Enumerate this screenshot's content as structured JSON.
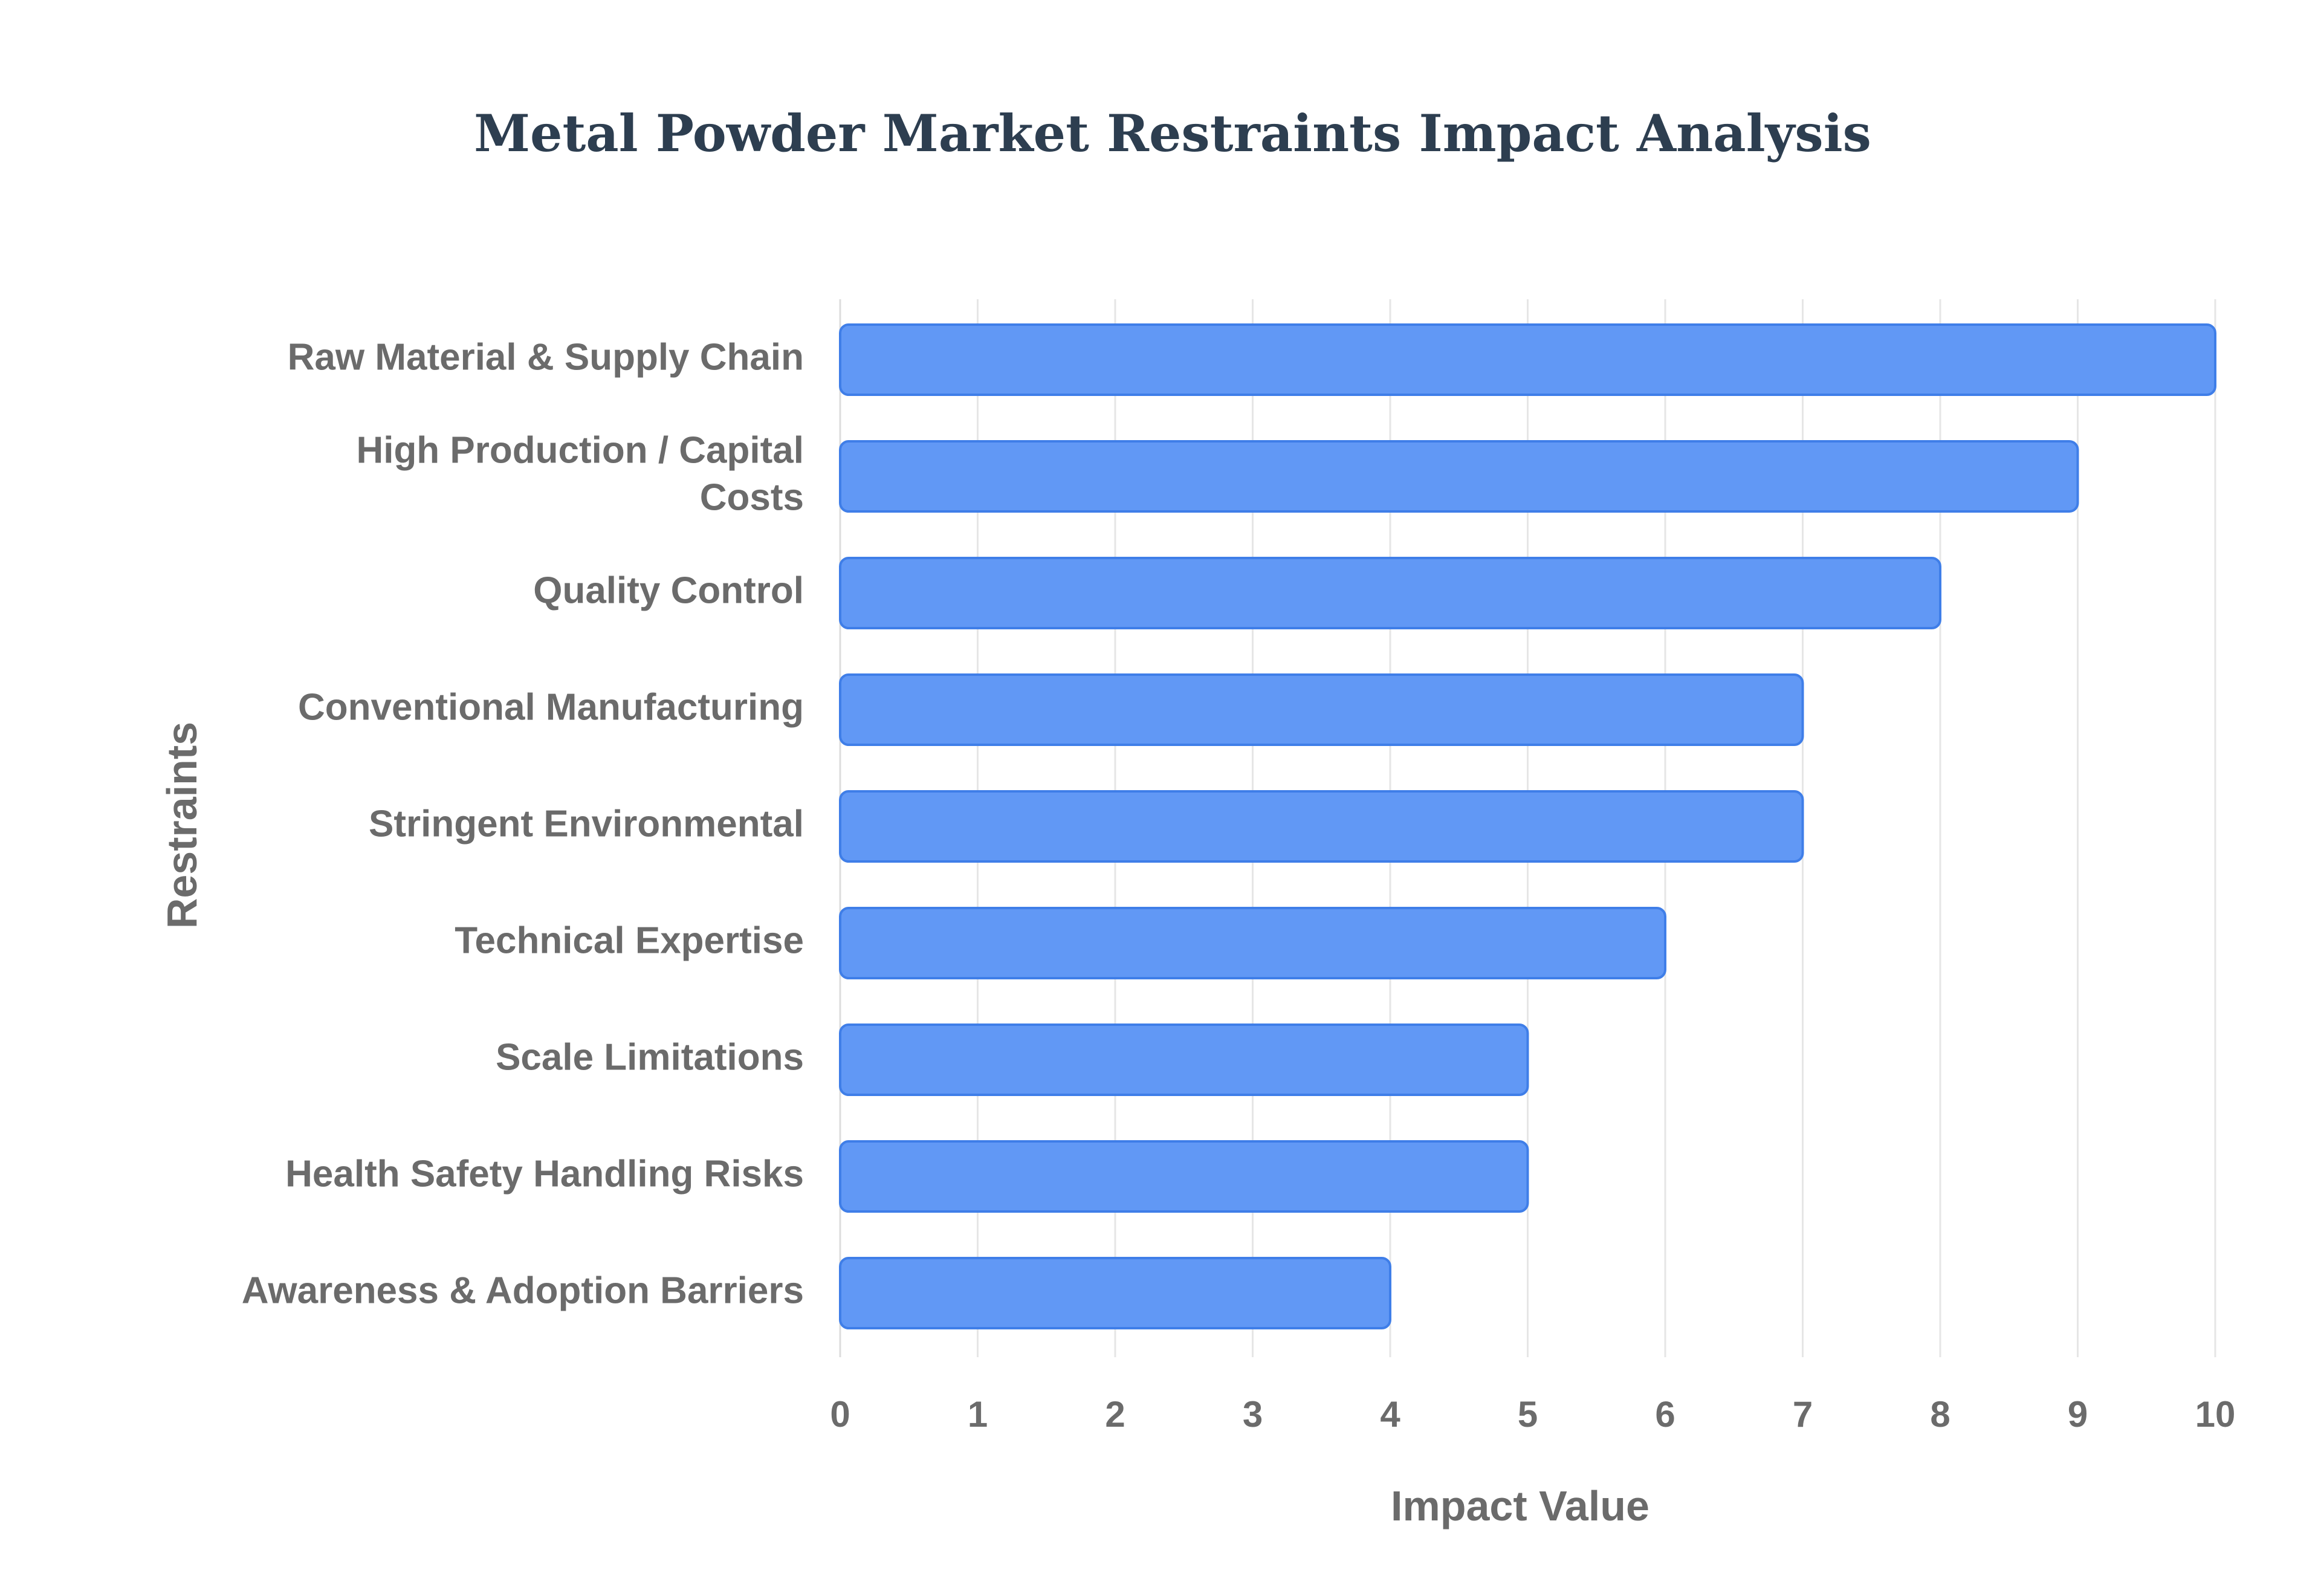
{
  "chart_data": {
    "type": "bar",
    "orientation": "horizontal",
    "title": "Metal Powder Market Restraints Impact Analysis",
    "xlabel": "Impact Value",
    "ylabel": "Restraints",
    "categories": [
      "Raw Material & Supply Chain",
      "High Production / Capital Costs",
      "Quality Control",
      "Conventional Manufacturing",
      "Stringent Environmental",
      "Technical Expertise",
      "Scale Limitations",
      "Health Safety Handling Risks",
      "Awareness & Adoption Barriers"
    ],
    "category_label_lines": [
      [
        "Raw Material & Supply Chain"
      ],
      [
        "High Production / Capital",
        "Costs"
      ],
      [
        "Quality Control"
      ],
      [
        "Conventional Manufacturing"
      ],
      [
        "Stringent Environmental"
      ],
      [
        "Technical Expertise"
      ],
      [
        "Scale Limitations"
      ],
      [
        "Health Safety Handling Risks"
      ],
      [
        "Awareness & Adoption Barriers"
      ]
    ],
    "values": [
      10,
      9,
      8,
      7,
      7,
      6,
      5,
      5,
      4
    ],
    "xlim": [
      0,
      10
    ],
    "xticks": [
      "0",
      "1",
      "2",
      "3",
      "4",
      "5",
      "6",
      "7",
      "8",
      "9",
      "10"
    ],
    "grid": true,
    "bar_color": "#6198f5",
    "bar_border_color": "#3f7ee8",
    "grid_color": "#e6e6e6"
  }
}
